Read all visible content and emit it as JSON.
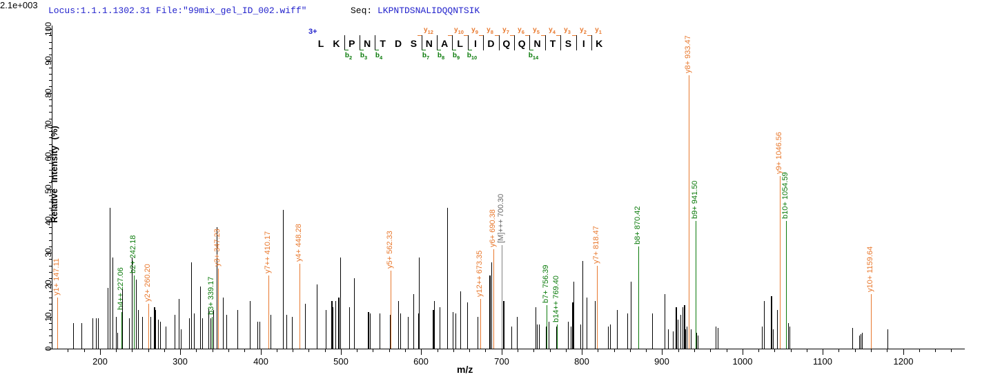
{
  "header": {
    "locus_file": "Locus:1.1.1.1302.31 File:\"99mix_gel_ID_002.wiff\"",
    "seq_label": "Seq:",
    "seq_value": "LKPNTDSNALIDQQNTSIK",
    "max_intensity": "2.1e+003"
  },
  "colors": {
    "y_ion": "#E8782D",
    "b_ion": "#0A7A0A",
    "precursor": "#808080",
    "unassigned": "#000000",
    "header_blue": "#2222CC",
    "axis": "#000000"
  },
  "chart_data": {
    "type": "bar",
    "subtype": "centroided MS/MS peptide fragmentation spectrum (stick plot)",
    "title": "",
    "xlabel": "m/z",
    "ylabel": "Relative Intensity (%)",
    "xlim": [
      140,
      1270
    ],
    "ylim": [
      0,
      100
    ],
    "grid": false,
    "x_major_ticks": [
      200,
      300,
      400,
      500,
      600,
      700,
      800,
      900,
      1000,
      1100,
      1200
    ],
    "x_minor_step": 20,
    "y_major_ticks": [
      0,
      10,
      20,
      30,
      40,
      50,
      60,
      70,
      80,
      90,
      100
    ],
    "y_minor_step": 2,
    "peptide": {
      "charge_label": "3+",
      "residues": [
        "L",
        "K",
        "P",
        "N",
        "T",
        "D",
        "S",
        "N",
        "A",
        "L",
        "I",
        "D",
        "Q",
        "Q",
        "N",
        "T",
        "S",
        "I",
        "K"
      ],
      "cleavages": [
        {
          "after": 2,
          "b": 2
        },
        {
          "after": 3,
          "b": 3
        },
        {
          "after": 4,
          "b": 4
        },
        {
          "after": 7,
          "y": 12,
          "b": 7
        },
        {
          "after": 8,
          "b": 8
        },
        {
          "after": 9,
          "y": 10,
          "b": 9
        },
        {
          "after": 10,
          "y": 9,
          "b": 10
        },
        {
          "after": 11,
          "y": 8
        },
        {
          "after": 12,
          "y": 7
        },
        {
          "after": 13,
          "y": 6
        },
        {
          "after": 14,
          "y": 5,
          "b": 14
        },
        {
          "after": 15,
          "y": 4
        },
        {
          "after": 16,
          "y": 3
        },
        {
          "after": 17,
          "y": 2
        },
        {
          "after": 18,
          "y": 1
        }
      ]
    },
    "annotated_peaks": [
      {
        "ion": "y1+",
        "mz": 147.11,
        "intensity": 16
      },
      {
        "ion": "b4++",
        "mz": 227.06,
        "intensity": 11.5
      },
      {
        "ion": "b2+",
        "mz": 242.18,
        "intensity": 23
      },
      {
        "ion": "y2+",
        "mz": 260.2,
        "intensity": 14
      },
      {
        "ion": "b3+",
        "mz": 339.17,
        "intensity": 10
      },
      {
        "ion": "y3+",
        "mz": 347.23,
        "intensity": 25
      },
      {
        "ion": "y7++",
        "mz": 410.17,
        "intensity": 23
      },
      {
        "ion": "y4+",
        "mz": 448.28,
        "intensity": 26.5
      },
      {
        "ion": "y5+",
        "mz": 562.33,
        "intensity": 24.5
      },
      {
        "ion": "y12++",
        "mz": 673.35,
        "intensity": 15.5
      },
      {
        "ion": "y6+",
        "mz": 690.38,
        "intensity": 31
      },
      {
        "ion": "[M]+++",
        "mz": 700.3,
        "intensity": 32.5
      },
      {
        "ion": "b7+",
        "mz": 756.39,
        "intensity": 13.5
      },
      {
        "ion": "b14++",
        "mz": 769.4,
        "intensity": 7.5
      },
      {
        "ion": "y7+",
        "mz": 818.47,
        "intensity": 26
      },
      {
        "ion": "b8+",
        "mz": 870.42,
        "intensity": 32
      },
      {
        "ion": "y8+",
        "mz": 933.47,
        "intensity": 100
      },
      {
        "ion": "b9+",
        "mz": 941.5,
        "intensity": 40
      },
      {
        "ion": "y9+",
        "mz": 1046.56,
        "intensity": 54
      },
      {
        "ion": "b10+",
        "mz": 1054.59,
        "intensity": 40
      },
      {
        "ion": "y10+",
        "mz": 1159.64,
        "intensity": 17
      }
    ],
    "peaks": [
      [
        147.11,
        16,
        "y",
        "y1+ 147.11"
      ],
      [
        167,
        8
      ],
      [
        177,
        8
      ],
      [
        191,
        9.5
      ],
      [
        195,
        9.5
      ],
      [
        198,
        9.5
      ],
      [
        210,
        19
      ],
      [
        212.5,
        44
      ],
      [
        216,
        28.5
      ],
      [
        219.5,
        10
      ],
      [
        222,
        5
      ],
      [
        227.06,
        11.5,
        "b",
        "b4++ 227.06"
      ],
      [
        227.9,
        18.5
      ],
      [
        236.5,
        9.5
      ],
      [
        239.5,
        28.5
      ],
      [
        242.18,
        23,
        "b",
        "b2+ 242.18"
      ],
      [
        244.5,
        21.5
      ],
      [
        247,
        12
      ],
      [
        252.5,
        10
      ],
      [
        260.2,
        14,
        "y",
        "y2+ 260.20"
      ],
      [
        263,
        10
      ],
      [
        267,
        13,
        "",
        "",
        2
      ],
      [
        269,
        12
      ],
      [
        272.5,
        9
      ],
      [
        275,
        8.5
      ],
      [
        282,
        7
      ],
      [
        293,
        10.5
      ],
      [
        298.5,
        15.5
      ],
      [
        300.5,
        6
      ],
      [
        311,
        9.5
      ],
      [
        314,
        27
      ],
      [
        317,
        11
      ],
      [
        325,
        19.5
      ],
      [
        327,
        9.5
      ],
      [
        335,
        12.5
      ],
      [
        337.5,
        9.5
      ],
      [
        339.17,
        10,
        "b",
        "b3+ 339.17"
      ],
      [
        341.3,
        12
      ],
      [
        345,
        38
      ],
      [
        347.23,
        25,
        "y",
        "y3+ 347.23"
      ],
      [
        353.5,
        16
      ],
      [
        357.5,
        10.5
      ],
      [
        371,
        12
      ],
      [
        387,
        15
      ],
      [
        396,
        8.5
      ],
      [
        398.5,
        8.5
      ],
      [
        410.17,
        23,
        "y",
        "y7++ 410.17"
      ],
      [
        412.5,
        10.5
      ],
      [
        427.5,
        43.5
      ],
      [
        432,
        10.5
      ],
      [
        439,
        10
      ],
      [
        448.28,
        26.5,
        "y",
        "y4+ 448.28"
      ],
      [
        455,
        14
      ],
      [
        470,
        20
      ],
      [
        481,
        12
      ],
      [
        488,
        15,
        "",
        "",
        2
      ],
      [
        490,
        13
      ],
      [
        493,
        15
      ],
      [
        497,
        16,
        "",
        "",
        2
      ],
      [
        499,
        28.5
      ],
      [
        510,
        13
      ],
      [
        516.5,
        22
      ],
      [
        533.5,
        11.5,
        "",
        "",
        2
      ],
      [
        536,
        11
      ],
      [
        548,
        11
      ],
      [
        561,
        10.5
      ],
      [
        562.33,
        24.5,
        "y",
        "y5+ 562.33"
      ],
      [
        571,
        15
      ],
      [
        574,
        11
      ],
      [
        583,
        10
      ],
      [
        590,
        17
      ],
      [
        596.5,
        11,
        "",
        "",
        2
      ],
      [
        597.5,
        28.5
      ],
      [
        614,
        12,
        "",
        "",
        2
      ],
      [
        616,
        15
      ],
      [
        623,
        13
      ],
      [
        632,
        44
      ],
      [
        639,
        11.5
      ],
      [
        642.5,
        11
      ],
      [
        649,
        18
      ],
      [
        657.5,
        14.5
      ],
      [
        670,
        10
      ],
      [
        673.35,
        15.5,
        "y",
        "y12++ 673.35"
      ],
      [
        685,
        23,
        "",
        "",
        2
      ],
      [
        687,
        27
      ],
      [
        690.38,
        31,
        "y",
        "y6+ 690.38"
      ],
      [
        700.3,
        32.5,
        "M",
        "[M]+++ 700.30"
      ],
      [
        701.8,
        15,
        "",
        "",
        2
      ],
      [
        712,
        7
      ],
      [
        719,
        10
      ],
      [
        742,
        13
      ],
      [
        744.5,
        7.5
      ],
      [
        747,
        7.5
      ],
      [
        755,
        7
      ],
      [
        756.39,
        13.5,
        "b",
        "b7+ 756.39"
      ],
      [
        758.5,
        8.5
      ],
      [
        768,
        7
      ],
      [
        769.4,
        7.5,
        "b",
        "b14++ 769.40"
      ],
      [
        783,
        8.5
      ],
      [
        786,
        7
      ],
      [
        787.5,
        14.5,
        "",
        "",
        2
      ],
      [
        789.5,
        21
      ],
      [
        798,
        7.5
      ],
      [
        800.5,
        27.5
      ],
      [
        806,
        16
      ],
      [
        816,
        15
      ],
      [
        818.47,
        26,
        "y",
        "y7+ 818.47"
      ],
      [
        832.5,
        7
      ],
      [
        835.5,
        7.5
      ],
      [
        843.5,
        12
      ],
      [
        857,
        11
      ],
      [
        861,
        21
      ],
      [
        870.42,
        32,
        "b",
        "b8+ 870.42"
      ],
      [
        887.5,
        11
      ],
      [
        903.5,
        17
      ],
      [
        907,
        6
      ],
      [
        913,
        5.5
      ],
      [
        917,
        13,
        "",
        "",
        2
      ],
      [
        919,
        9
      ],
      [
        923,
        10.5
      ],
      [
        925.5,
        13
      ],
      [
        927,
        13.5,
        "",
        "",
        2
      ],
      [
        929,
        6
      ],
      [
        930.5,
        7
      ],
      [
        933.47,
        100,
        "y",
        "y8+ 933.47"
      ],
      [
        935.5,
        6
      ],
      [
        941.5,
        40,
        "b",
        "b9+ 941.50"
      ],
      [
        943,
        5
      ],
      [
        944.5,
        4
      ],
      [
        967,
        7
      ],
      [
        969,
        6.5
      ],
      [
        1024,
        7
      ],
      [
        1026.5,
        15
      ],
      [
        1035,
        16.5,
        "",
        "",
        2
      ],
      [
        1038,
        6
      ],
      [
        1043,
        12
      ],
      [
        1046.56,
        54,
        "y",
        "y9+ 1046.56"
      ],
      [
        1054.59,
        40,
        "b",
        "b10+ 1054.59"
      ],
      [
        1056.5,
        8
      ],
      [
        1058.5,
        7
      ],
      [
        1137,
        6.5
      ],
      [
        1145,
        4
      ],
      [
        1147,
        4.5
      ],
      [
        1149,
        5
      ],
      [
        1159.64,
        17,
        "y",
        "y10+ 1159.64"
      ],
      [
        1181,
        6
      ]
    ]
  }
}
